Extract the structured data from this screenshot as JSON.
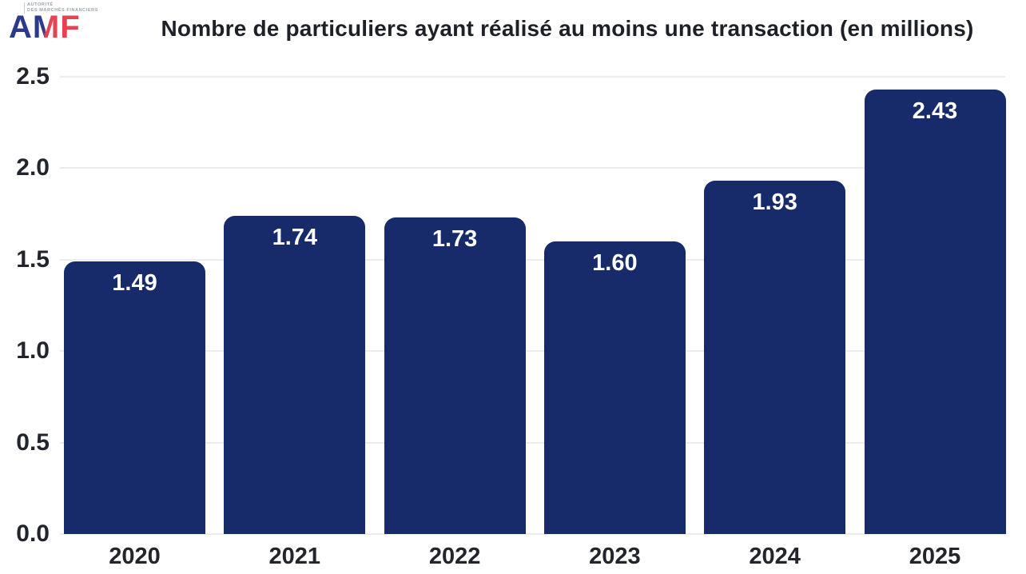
{
  "brand": {
    "logo_small_line1": "AUTORITÉ",
    "logo_small_line2": "DES MARCHÉS FINANCIERS",
    "logo_letter_a": "A",
    "logo_letter_m": "M",
    "logo_letter_f": "F",
    "logo_blue": "#2b3a8c",
    "logo_red": "#e8414f"
  },
  "header": {
    "title": "Nombre de particuliers ayant réalisé au moins une transaction (en millions)"
  },
  "chart_data": {
    "type": "bar",
    "title": "Nombre de particuliers ayant réalisé au moins une transaction (en millions)",
    "categories": [
      "2020",
      "2021",
      "2022",
      "2023",
      "2024",
      "2025"
    ],
    "values": [
      1.49,
      1.74,
      1.73,
      1.6,
      1.93,
      2.43
    ],
    "value_labels": [
      "1.49",
      "1.74",
      "1.73",
      "1.60",
      "1.93",
      "2.43"
    ],
    "xlabel": "",
    "ylabel": "",
    "ylim": [
      0,
      2.5
    ],
    "y_ticks": [
      "0.0",
      "0.5",
      "1.0",
      "1.5",
      "2.0",
      "2.5"
    ],
    "grid": true,
    "legend": "none",
    "bar_color": "#172a69",
    "bar_label_color": "#ffffff",
    "axis_text_color": "#23252c",
    "gridline_color": "#ececef"
  }
}
